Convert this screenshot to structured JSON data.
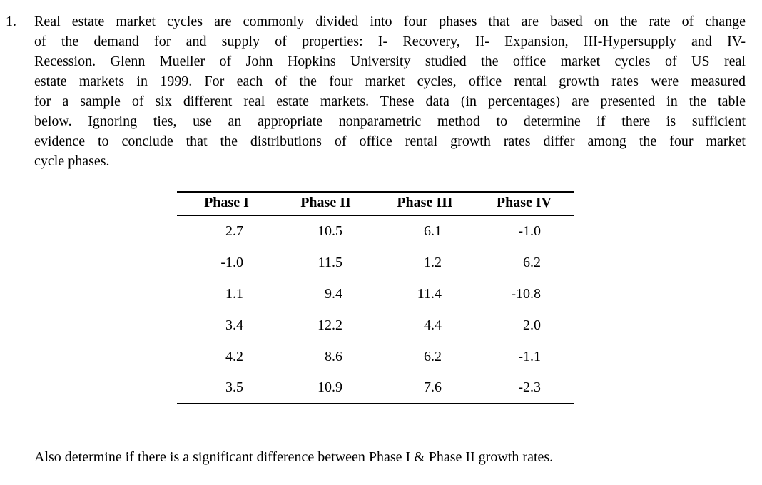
{
  "problem": {
    "number": "1.",
    "lines": [
      "Real estate market cycles are commonly divided into four phases that are based on the rate of change",
      "of the demand for and supply of properties: I- Recovery, II- Expansion, III-Hypersupply and IV-",
      "Recession.  Glenn Mueller of John Hopkins University studied the office market cycles of US real",
      "estate markets in 1999.  For each of the four market cycles, office rental growth rates were measured",
      "for a sample of six different real estate markets.  These data (in percentages) are presented in the table",
      "below.  Ignoring ties, use an appropriate nonparametric method to determine if there is sufficient",
      "evidence to conclude that the distributions of office rental growth rates differ among the four market",
      "cycle phases."
    ]
  },
  "table": {
    "headers": [
      "Phase I",
      "Phase II",
      "Phase III",
      "Phase IV"
    ],
    "rows": [
      [
        "2.7",
        "10.5",
        "6.1",
        "-1.0"
      ],
      [
        "-1.0",
        "11.5",
        "1.2",
        "6.2"
      ],
      [
        "1.1",
        "9.4",
        "11.4",
        "-10.8"
      ],
      [
        "3.4",
        "12.2",
        "4.4",
        "2.0"
      ],
      [
        "4.2",
        "8.6",
        "6.2",
        "-1.1"
      ],
      [
        "3.5",
        "10.9",
        "7.6",
        "-2.3"
      ]
    ]
  },
  "footer_note": "Also determine if there is a significant difference between Phase I & Phase II growth rates.",
  "colors": {
    "text": "#000000",
    "background": "#ffffff"
  }
}
